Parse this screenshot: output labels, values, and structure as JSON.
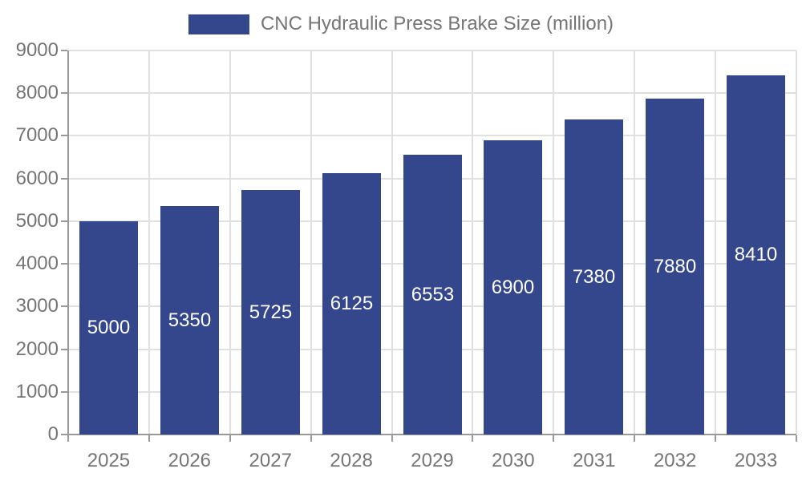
{
  "chart_data": {
    "type": "bar",
    "title": "CNC Hydraulic Press Brake Size (million)",
    "categories": [
      "2025",
      "2026",
      "2027",
      "2028",
      "2029",
      "2030",
      "2031",
      "2032",
      "2033"
    ],
    "values": [
      5000,
      5350,
      5725,
      6125,
      6553,
      6900,
      7380,
      7880,
      8410
    ],
    "xlabel": "",
    "ylabel": "",
    "ylim": [
      0,
      9000
    ],
    "ytick_step": 1000,
    "grid": true,
    "legend_position": "top",
    "colors": {
      "bar": "#35478C",
      "value_label": "#ffffff",
      "axis_text": "#757575",
      "gridline": "#e0e0e0",
      "axis_line": "#999999",
      "background": "#ffffff"
    }
  }
}
